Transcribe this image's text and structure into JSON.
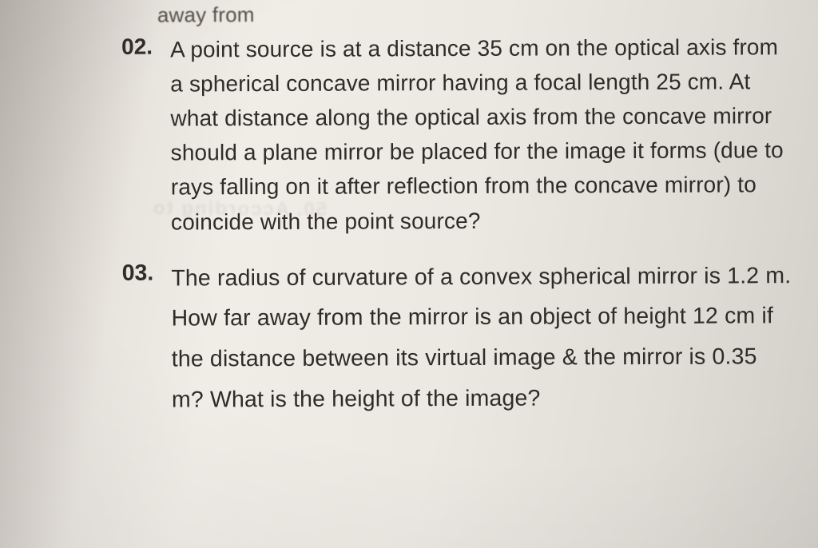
{
  "page": {
    "background_gradient": [
      "#b8b2ac",
      "#c8c2bc",
      "#e8e4de",
      "#f0ece6",
      "#ece8e2",
      "#e0dcd6",
      "#d2cec8"
    ],
    "text_color": "#2f2b26",
    "font_family": "Arial",
    "body_fontsize_pt": 21,
    "number_fontsize_pt": 21,
    "line_height": 1.6
  },
  "fragment_top": "away from",
  "questions": [
    {
      "number": "02.",
      "text": "A point source is at a distance 35 cm on the optical axis from a spherical concave mirror having a focal length 25 cm. At what distance along the optical axis from the concave mirror should a plane mirror be placed for the image it forms (due to rays falling on it after reflection from the concave mirror) to coincide with the point source?"
    },
    {
      "number": "03.",
      "text": "The radius of curvature of a convex spherical mirror is 1.2 m. How far away from the mirror is an object of height 12 cm if the distance between its virtual image & the mirror is 0.35 m? What is the height of the image?"
    }
  ],
  "ghost_text": "50. According to"
}
